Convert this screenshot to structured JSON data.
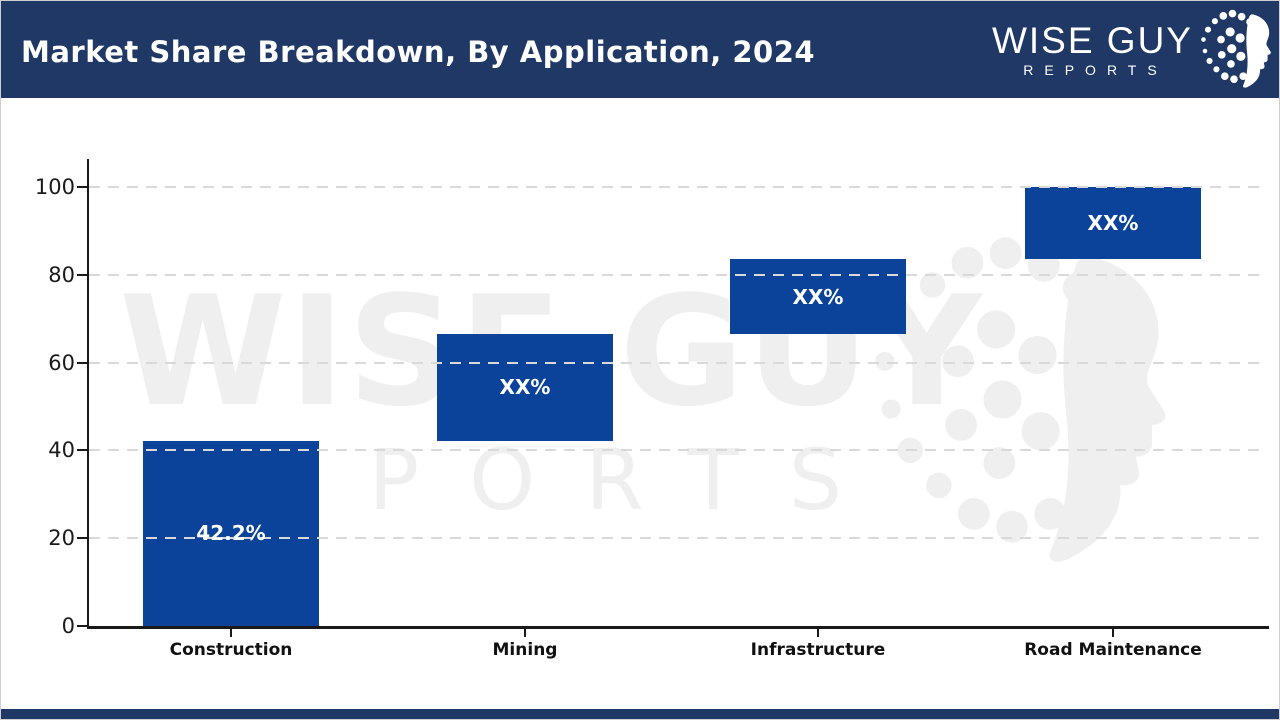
{
  "header": {
    "title": "Market Share Breakdown, By Application, 2024",
    "logo_line1": "WISE GUY",
    "logo_line2": "REPORTS",
    "bg_color": "#1f3866"
  },
  "watermark": {
    "line1": "WISE GUY",
    "line2": "REPORTS"
  },
  "chart_data": {
    "type": "bar",
    "subtype": "waterfall",
    "title": "Market Share Breakdown, By Application, 2024",
    "categories": [
      "Construction",
      "Mining",
      "Infrastructure",
      "Road Maintenance"
    ],
    "series": [
      {
        "name": "Market Share",
        "segments": [
          {
            "category": "Construction",
            "start": 0,
            "end": 42.2,
            "label": "42.2%"
          },
          {
            "category": "Mining",
            "start": 42.2,
            "end": 66.5,
            "label": "XX%"
          },
          {
            "category": "Infrastructure",
            "start": 66.5,
            "end": 83.6,
            "label": "XX%"
          },
          {
            "category": "Road Maintenance",
            "start": 83.6,
            "end": 100,
            "label": "XX%"
          }
        ]
      }
    ],
    "xlabel": "",
    "ylabel": "",
    "ylim": [
      0,
      100
    ],
    "yticks": [
      0,
      20,
      40,
      60,
      80,
      100
    ],
    "grid": "horizontal-dashed",
    "grid_color": "#d9d9d9",
    "bar_color": "#0b439a",
    "bar_label_color": "#ffffff",
    "legend": "none"
  }
}
